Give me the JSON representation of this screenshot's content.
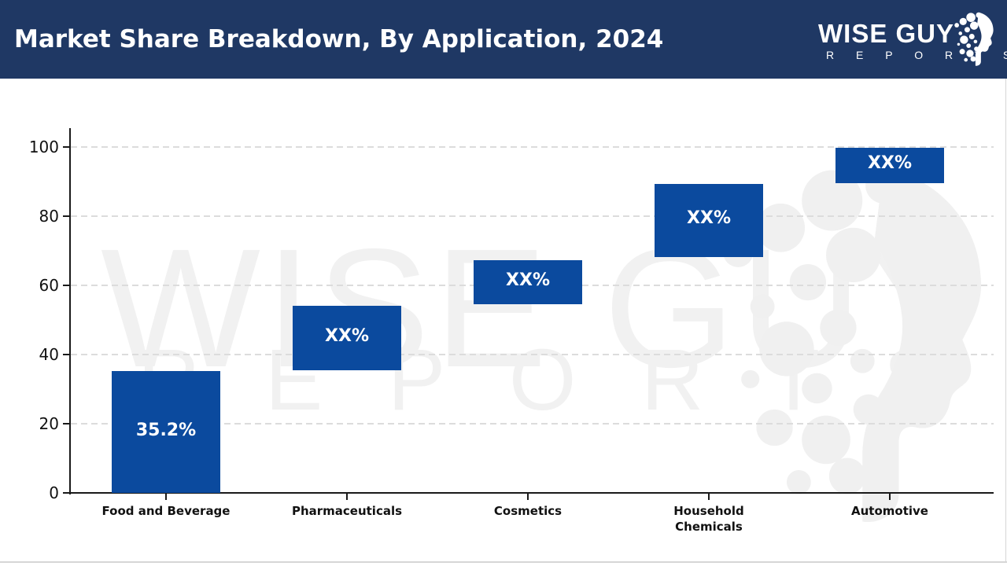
{
  "header": {
    "title": "Market Share Breakdown, By Application, 2024",
    "bg_color": "#1f3864",
    "logo": {
      "line1": "WISE GUY",
      "line2": "R E P O R T S",
      "head_icon": "dotted-face-profile"
    }
  },
  "watermark": {
    "line1": "WISE GUY",
    "line2": "R E P O R T S",
    "head_icon": "dotted-face-profile"
  },
  "chart_data": {
    "type": "bar",
    "subtype": "waterfall",
    "title": "Market Share Breakdown, By Application, 2024",
    "categories": [
      "Food and Beverage",
      "Pharmaceuticals",
      "Cosmetics",
      "Household Chemicals",
      "Automotive"
    ],
    "categories_display": [
      "Food and Beverage",
      "Pharmaceuticals",
      "Cosmetics",
      "Household\nChemicals",
      "Automotive"
    ],
    "bars": [
      {
        "category": "Food and Beverage",
        "start": 0,
        "end": 35.2,
        "label": "35.2%"
      },
      {
        "category": "Pharmaceuticals",
        "start": 35.5,
        "end": 54.1,
        "label": "XX%"
      },
      {
        "category": "Cosmetics",
        "start": 54.5,
        "end": 67.3,
        "label": "XX%"
      },
      {
        "category": "Household Chemicals",
        "start": 68.2,
        "end": 89.3,
        "label": "XX%"
      },
      {
        "category": "Automotive",
        "start": 89.6,
        "end": 99.8,
        "label": "XX%"
      }
    ],
    "yticks": [
      0,
      20,
      40,
      60,
      80,
      100
    ],
    "ylim": [
      0,
      105
    ],
    "xlabel": "",
    "ylabel": "",
    "legend": "none",
    "grid": "horizontal-dashed",
    "bar_color": "#0b4a9e",
    "bar_label_color": "#ffffff",
    "axis_color": "#1a1a1a",
    "grid_color": "#dcdcdc"
  }
}
